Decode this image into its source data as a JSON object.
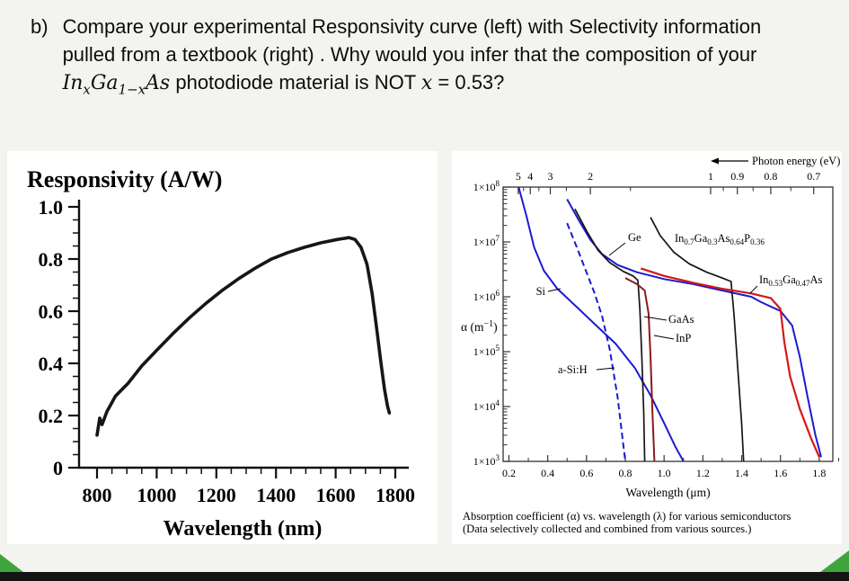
{
  "slide": {
    "question": {
      "bullet": "b)",
      "parts": [
        {
          "s": "plain",
          "t": "Compare your experimental Responsivity curve (left) with Selectivity information pulled from a textbook (right) . Why would you infer that the composition of your "
        },
        {
          "s": "math",
          "t": "In"
        },
        {
          "s": "mathsub",
          "t": "x"
        },
        {
          "s": "math",
          "t": "Ga"
        },
        {
          "s": "mathsub",
          "t": "1−x"
        },
        {
          "s": "math",
          "t": "As"
        },
        {
          "s": "plain",
          "t": " photodiode material is NOT "
        },
        {
          "s": "math",
          "t": "x"
        },
        {
          "s": "plain",
          "t": " = 0.53?"
        }
      ]
    },
    "accent_green": "#3fa43c",
    "footer_color": "#141414"
  },
  "chart_data": [
    {
      "type": "line",
      "title": "Responsivity (A/W)",
      "xlabel": "Wavelength (nm)",
      "x_ticks": [
        800,
        1000,
        1200,
        1400,
        1600,
        1800
      ],
      "y_ticks": [
        "0",
        "0.2",
        "0.4",
        "0.6",
        "0.8",
        "1.0"
      ],
      "xlim": [
        780,
        1870
      ],
      "ylim": [
        0,
        1.0
      ],
      "grid": false,
      "line_color": "#161616",
      "points": [
        [
          800,
          0.125
        ],
        [
          809,
          0.19
        ],
        [
          817,
          0.165
        ],
        [
          833,
          0.215
        ],
        [
          862,
          0.275
        ],
        [
          905,
          0.325
        ],
        [
          950,
          0.39
        ],
        [
          1000,
          0.45
        ],
        [
          1055,
          0.515
        ],
        [
          1110,
          0.575
        ],
        [
          1165,
          0.63
        ],
        [
          1220,
          0.68
        ],
        [
          1275,
          0.725
        ],
        [
          1330,
          0.765
        ],
        [
          1385,
          0.8
        ],
        [
          1440,
          0.825
        ],
        [
          1495,
          0.845
        ],
        [
          1550,
          0.862
        ],
        [
          1605,
          0.875
        ],
        [
          1645,
          0.882
        ],
        [
          1665,
          0.875
        ],
        [
          1685,
          0.845
        ],
        [
          1705,
          0.78
        ],
        [
          1722,
          0.67
        ],
        [
          1738,
          0.53
        ],
        [
          1752,
          0.4
        ],
        [
          1764,
          0.3
        ],
        [
          1774,
          0.235
        ],
        [
          1780,
          0.21
        ]
      ]
    },
    {
      "type": "line",
      "title": "",
      "xlabel": "Wavelength (μm)",
      "ylabel": "α (m^{−1})",
      "top_axis_label": "Photon energy (eV)",
      "x_ticks": [
        "0.2",
        "0.4",
        "0.6",
        "0.8",
        "1.0",
        "1.2",
        "1.4",
        "1.6",
        "1.8"
      ],
      "y_ticks": [
        "1×10^{3}",
        "1×10^{4}",
        "1×10^{5}",
        "1×10^{6}",
        "1×10^{7}",
        "1×10^{8}"
      ],
      "top_ticks": [
        "5",
        "4",
        "3",
        "2",
        "1",
        "0.9",
        "0.8",
        "0.7"
      ],
      "xlim": [
        0.17,
        1.87
      ],
      "ylog_lim": [
        3,
        8
      ],
      "grid": false,
      "caption": [
        "Absorption coefficient (α) vs. wavelength (λ) for various semiconductors",
        "(Data selectively collected and combined from various sources.)"
      ],
      "series": [
        {
          "name": "Si",
          "label": "Si",
          "color": "#1b1bd0",
          "dash": false,
          "points": [
            [
              0.25,
              100000000
            ],
            [
              0.29,
              30000000
            ],
            [
              0.33,
              8000000
            ],
            [
              0.38,
              3000000
            ],
            [
              0.45,
              1400000
            ],
            [
              0.55,
              650000
            ],
            [
              0.65,
              300000
            ],
            [
              0.75,
              140000
            ],
            [
              0.85,
              50000
            ],
            [
              0.93,
              16000
            ],
            [
              1.0,
              5000
            ],
            [
              1.06,
              1800
            ],
            [
              1.1,
              1000
            ]
          ]
        },
        {
          "name": "Ge",
          "label": "Ge",
          "color": "#1b1bd0",
          "dash": false,
          "points": [
            [
              0.5,
              60000000
            ],
            [
              0.56,
              25000000
            ],
            [
              0.62,
              11000000
            ],
            [
              0.68,
              6000000
            ],
            [
              0.76,
              3800000
            ],
            [
              0.86,
              2800000
            ],
            [
              1.0,
              2100000
            ],
            [
              1.15,
              1700000
            ],
            [
              1.3,
              1300000
            ],
            [
              1.45,
              1000000
            ],
            [
              1.5,
              800000
            ],
            [
              1.6,
              550000
            ],
            [
              1.66,
              300000
            ],
            [
              1.7,
              80000
            ],
            [
              1.74,
              15000
            ],
            [
              1.78,
              3000
            ],
            [
              1.81,
              1200
            ]
          ]
        },
        {
          "name": "a-Si:H",
          "label": "a-Si:H",
          "color": "#1b1bd0",
          "dash": true,
          "points": [
            [
              0.5,
              22000000
            ],
            [
              0.55,
              8000000
            ],
            [
              0.6,
              2800000
            ],
            [
              0.64,
              1200000
            ],
            [
              0.68,
              450000
            ],
            [
              0.72,
              110000
            ],
            [
              0.76,
              15000
            ],
            [
              0.8,
              1000
            ]
          ]
        },
        {
          "name": "GaAs",
          "label": "GaAs",
          "color": "#151515",
          "dash": false,
          "points": [
            [
              0.54,
              40000000
            ],
            [
              0.6,
              16000000
            ],
            [
              0.66,
              7000000
            ],
            [
              0.72,
              4200000
            ],
            [
              0.79,
              2900000
            ],
            [
              0.84,
              2400000
            ],
            [
              0.865,
              2000000
            ],
            [
              0.875,
              600000
            ],
            [
              0.885,
              80000
            ],
            [
              0.895,
              8000
            ],
            [
              0.9,
              1000
            ]
          ]
        },
        {
          "name": "InP",
          "label": "InP",
          "color": "#8b1a1a",
          "dash": false,
          "points": [
            [
              0.8,
              2200000
            ],
            [
              0.86,
              1700000
            ],
            [
              0.9,
              1300000
            ],
            [
              0.92,
              500000
            ],
            [
              0.93,
              80000
            ],
            [
              0.94,
              8000
            ],
            [
              0.95,
              1000
            ]
          ]
        },
        {
          "name": "InGaAsP",
          "label": "In_{0.7}Ga_{0.3}As_{0.64}P_{0.36}",
          "color": "#151515",
          "dash": false,
          "points": [
            [
              0.93,
              28000000
            ],
            [
              0.98,
              13000000
            ],
            [
              1.05,
              6500000
            ],
            [
              1.13,
              4000000
            ],
            [
              1.22,
              2800000
            ],
            [
              1.3,
              2200000
            ],
            [
              1.345,
              1900000
            ],
            [
              1.36,
              500000
            ],
            [
              1.38,
              50000
            ],
            [
              1.4,
              5000
            ],
            [
              1.41,
              1000
            ]
          ]
        },
        {
          "name": "InGaAs",
          "label": "In_{0.53}Ga_{0.47}As",
          "color": "#d81616",
          "dash": false,
          "points": [
            [
              0.88,
              3300000
            ],
            [
              1.0,
              2400000
            ],
            [
              1.15,
              1800000
            ],
            [
              1.3,
              1400000
            ],
            [
              1.45,
              1150000
            ],
            [
              1.55,
              950000
            ],
            [
              1.6,
              600000
            ],
            [
              1.62,
              150000
            ],
            [
              1.65,
              35000
            ],
            [
              1.7,
              9000
            ],
            [
              1.76,
              2500
            ],
            [
              1.8,
              1200
            ]
          ]
        }
      ]
    }
  ]
}
